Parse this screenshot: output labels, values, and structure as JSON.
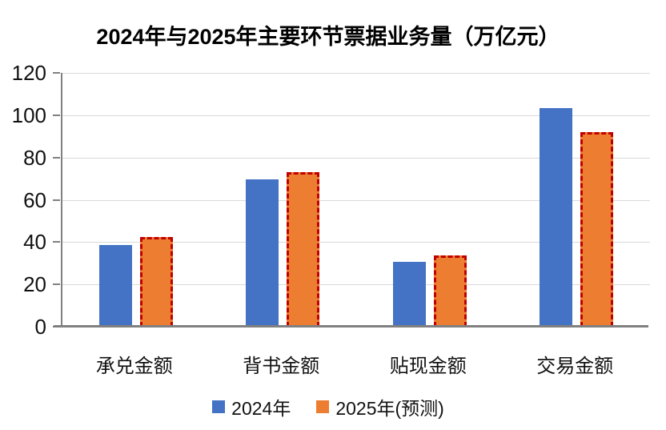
{
  "chart_data": {
    "type": "bar",
    "title": "2024年与2025年主要环节票据业务量（万亿元）",
    "categories": [
      "承兑金额",
      "背书金额",
      "贴现金额",
      "交易金额"
    ],
    "series": [
      {
        "name": "2024年",
        "color": "#4472c4",
        "style": "solid",
        "values": [
          38.5,
          69.7,
          30.5,
          103.3
        ]
      },
      {
        "name": "2025年(预测)",
        "color": "#ed7d31",
        "style": "forecast-dashed-red-border",
        "values": [
          42.5,
          73,
          33.8,
          92
        ]
      }
    ],
    "ylim": [
      0,
      120
    ],
    "yticks": [
      0,
      20,
      40,
      60,
      80,
      100,
      120
    ],
    "grid": true,
    "legend_position": "bottom"
  },
  "colors": {
    "series_2024": "#4472c4",
    "series_2025": "#ed7d31",
    "forecast_border": "#c00000",
    "axis_line": "#808080",
    "gridline": "#d9d9d9",
    "text": "#111111"
  }
}
